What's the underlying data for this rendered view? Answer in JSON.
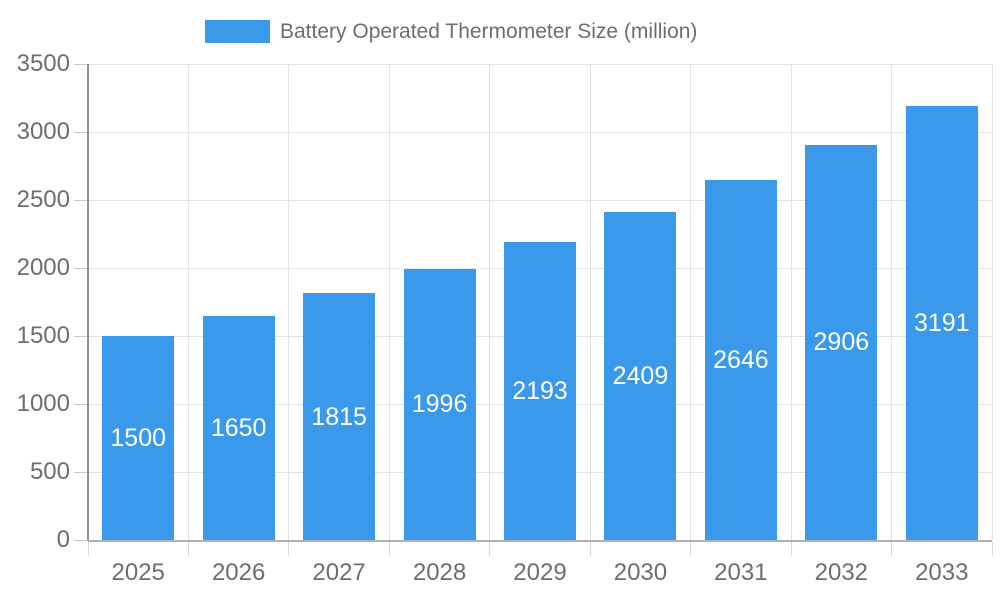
{
  "chart_data": {
    "type": "bar",
    "title": "Battery Operated Thermometer Size (million)",
    "legend": [
      "Battery Operated Thermometer Size (million)"
    ],
    "legend_position": "top",
    "categories": [
      "2025",
      "2026",
      "2027",
      "2028",
      "2029",
      "2030",
      "2031",
      "2032",
      "2033"
    ],
    "values": [
      1500,
      1650,
      1815,
      1996,
      2193,
      2409,
      2646,
      2906,
      3191
    ],
    "value_labels_shown": true,
    "xlabel": "",
    "ylabel": "",
    "ylim": [
      0,
      3500
    ],
    "yticks": [
      0,
      500,
      1000,
      1500,
      2000,
      2500,
      3000,
      3500
    ],
    "grid": true,
    "colors": {
      "bar": "#3B99EC",
      "value_label": "#ffffff",
      "axis_text": "#6e6e6e",
      "grid_line": "#e3e3e3",
      "axis_line": "#8f8f8f",
      "baseline": "#b0b0b0",
      "y_tick": "#c6c6c6",
      "x_tick": "#d9d9d9",
      "background": "#ffffff"
    }
  }
}
